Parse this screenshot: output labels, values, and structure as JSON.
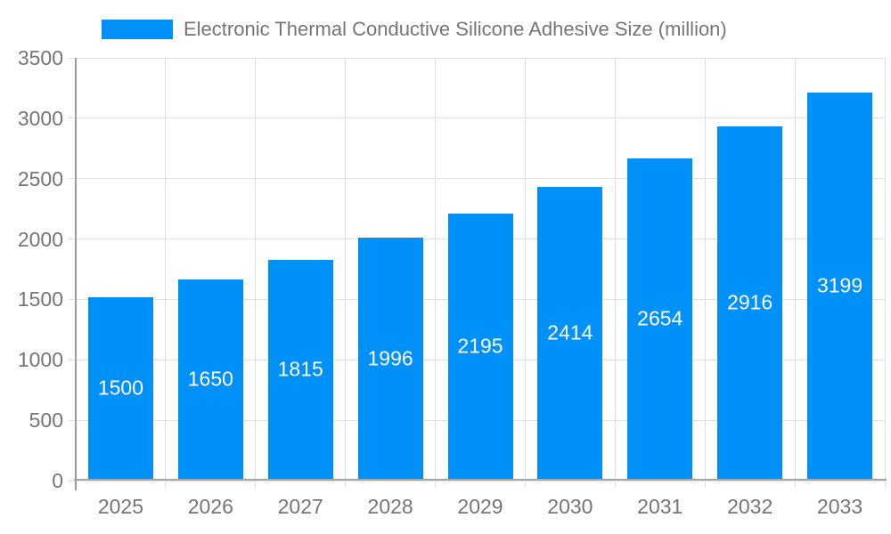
{
  "legend": {
    "series_label": "Electronic Thermal Conductive Silicone Adhesive Size (million)"
  },
  "chart_data": {
    "type": "bar",
    "title": "Electronic Thermal Conductive Silicone Adhesive Size (million)",
    "categories": [
      "2025",
      "2026",
      "2027",
      "2028",
      "2029",
      "2030",
      "2031",
      "2032",
      "2033"
    ],
    "values": [
      1500,
      1650,
      1815,
      1996,
      2195,
      2414,
      2654,
      2916,
      3199
    ],
    "xlabel": "",
    "ylabel": "",
    "ylim": [
      0,
      3500
    ],
    "y_ticks": [
      0,
      500,
      1000,
      1500,
      2000,
      2500,
      3000,
      3500
    ],
    "grid": true,
    "legend_position": "top-left",
    "value_labels_position": "inside-center",
    "colors": {
      "bar": "#0091f8",
      "bar_value_text": "#ffffff",
      "axis_text": "#757575",
      "axis_line": "#999999",
      "grid_line": "#e0e0e0",
      "background": "#ffffff"
    }
  }
}
